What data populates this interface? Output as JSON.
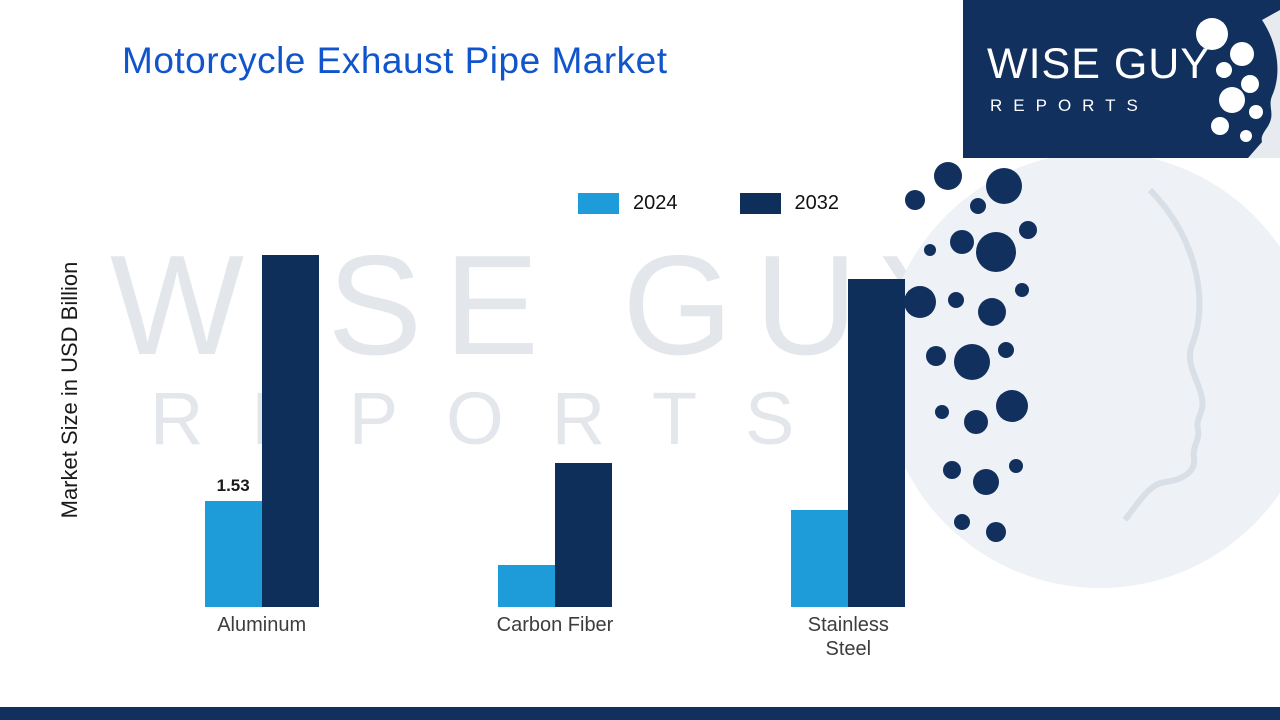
{
  "page": {
    "title": "Motorcycle Exhaust Pipe Market"
  },
  "logo": {
    "line1": "WISE GUY",
    "line2": "REPORTS"
  },
  "watermark": {
    "line1": "WISE GUY",
    "line2": "REPORTS"
  },
  "colors": {
    "accent_blue": "#1e9cd9",
    "navy": "#12305e",
    "title_blue": "#1155cc"
  },
  "chart_data": {
    "type": "bar",
    "title": "Motorcycle Exhaust Pipe Market",
    "ylabel": "Market Size in USD Billion",
    "categories": [
      "Aluminum",
      "Carbon Fiber",
      "Stainless Steel"
    ],
    "series": [
      {
        "name": "2024",
        "color": "#1e9cd9",
        "values": [
          1.53,
          0.61,
          1.4
        ],
        "labels": [
          "1.53",
          "",
          ""
        ]
      },
      {
        "name": "2032",
        "color": "#0e2f5a",
        "values": [
          5.1,
          2.08,
          4.75
        ],
        "labels": [
          "",
          "",
          ""
        ]
      }
    ],
    "ylim": [
      0,
      5.5
    ],
    "grid": false,
    "legend_position": "top"
  }
}
